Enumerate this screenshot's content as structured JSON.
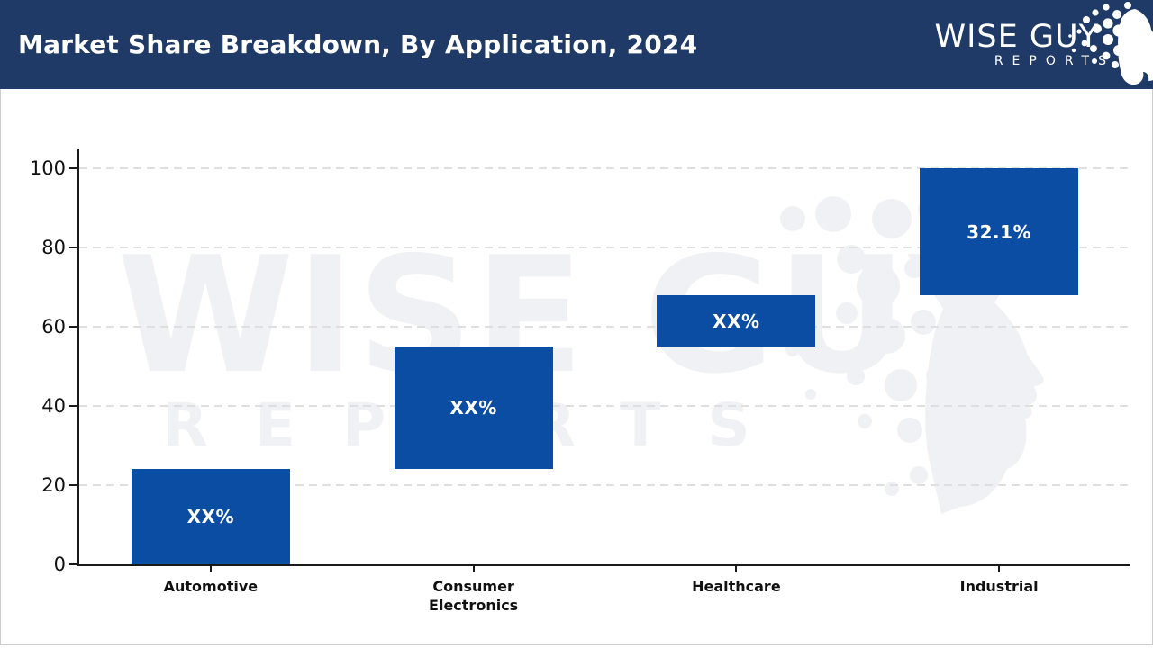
{
  "header": {
    "title": "Market Share Breakdown, By Application, 2024",
    "logo": {
      "name": "WISE GUY",
      "subtext": "REPORTS"
    }
  },
  "watermark": {
    "name": "WISE GUY",
    "subtext": "REPORTS"
  },
  "colors": {
    "header_bg": "#1f3a66",
    "bar": "#0b4da2",
    "grid": "#dfdfdf",
    "axis": "#1a1a1a",
    "tick_label": "#111111",
    "bar_label": "#ffffff",
    "watermark": "#eff1f4",
    "frame_border": "#cfcfcf"
  },
  "chart_data": {
    "type": "bar",
    "subtype": "waterfall",
    "title": "Market Share Breakdown, By Application, 2024",
    "categories": [
      "Automotive",
      "Consumer\nElectronics",
      "Healthcare",
      "Industrial"
    ],
    "segments": [
      {
        "category": "Automotive",
        "start": 0,
        "end": 24,
        "value_label": "XX%"
      },
      {
        "category": "Consumer Electronics",
        "start": 24,
        "end": 55,
        "value_label": "XX%"
      },
      {
        "category": "Healthcare",
        "start": 55,
        "end": 67.9,
        "value_label": "XX%"
      },
      {
        "category": "Industrial",
        "start": 67.9,
        "end": 100,
        "value_label": "32.1%"
      }
    ],
    "yticks": [
      0,
      20,
      40,
      60,
      80,
      100
    ],
    "ylim": [
      0,
      104.8
    ],
    "xlabel": "",
    "ylabel": "",
    "grid": "horizontal-dashed",
    "legend": "none"
  }
}
